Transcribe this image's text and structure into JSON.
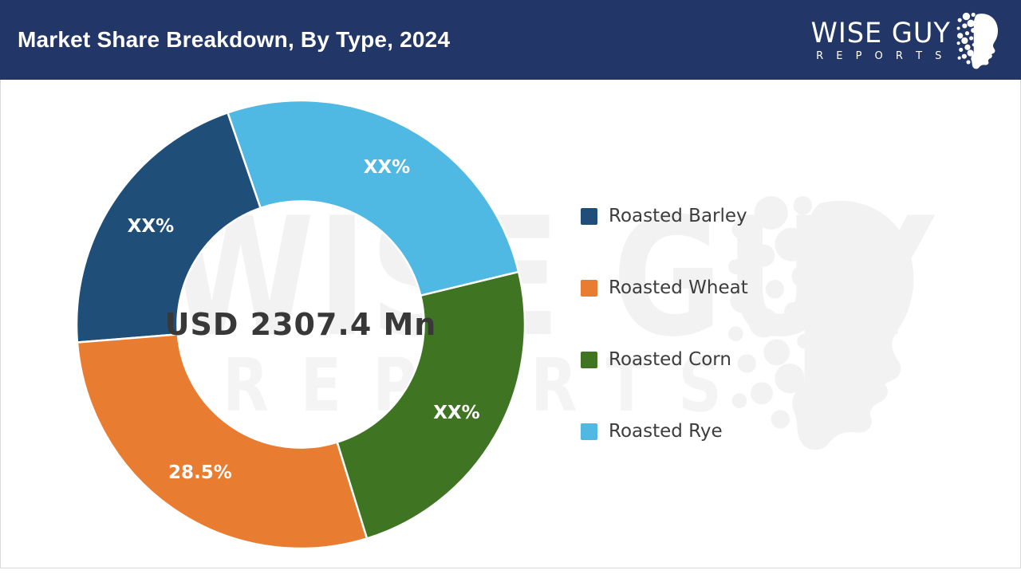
{
  "header": {
    "title": "Market Share Breakdown, By Type, 2024",
    "logo": {
      "brand_line1": "WISE GUY",
      "brand_line2": "R E P O R T S"
    }
  },
  "watermark": {
    "line1": "WISE GUY",
    "line2": "REPORTS"
  },
  "colors": {
    "header_bg": "#223667",
    "watermark": "#f2f2f2",
    "center_text": "#383838",
    "legend_text": "#3c3c3c"
  },
  "chart_data": {
    "type": "pie",
    "subtype": "donut",
    "title": "Market Share Breakdown, By Type, 2024",
    "center_label": "USD 2307.4 Mn",
    "donut_hole_ratio": 0.55,
    "start_angle_deg": 109,
    "direction": "counterclockwise",
    "legend_position": "right",
    "label_radius_ratio": 0.8,
    "segments": [
      {
        "name": "Roasted Barley",
        "display_label": "XX%",
        "value_pct": 21.0,
        "color": "#1f4e79"
      },
      {
        "name": "Roasted Wheat",
        "display_label": "28.5%",
        "value_pct": 28.5,
        "color": "#e87d31"
      },
      {
        "name": "Roasted Corn",
        "display_label": "XX%",
        "value_pct": 24.0,
        "color": "#3f7522"
      },
      {
        "name": "Roasted Rye",
        "display_label": "XX%",
        "value_pct": 26.5,
        "color": "#4fb8e3"
      }
    ]
  }
}
